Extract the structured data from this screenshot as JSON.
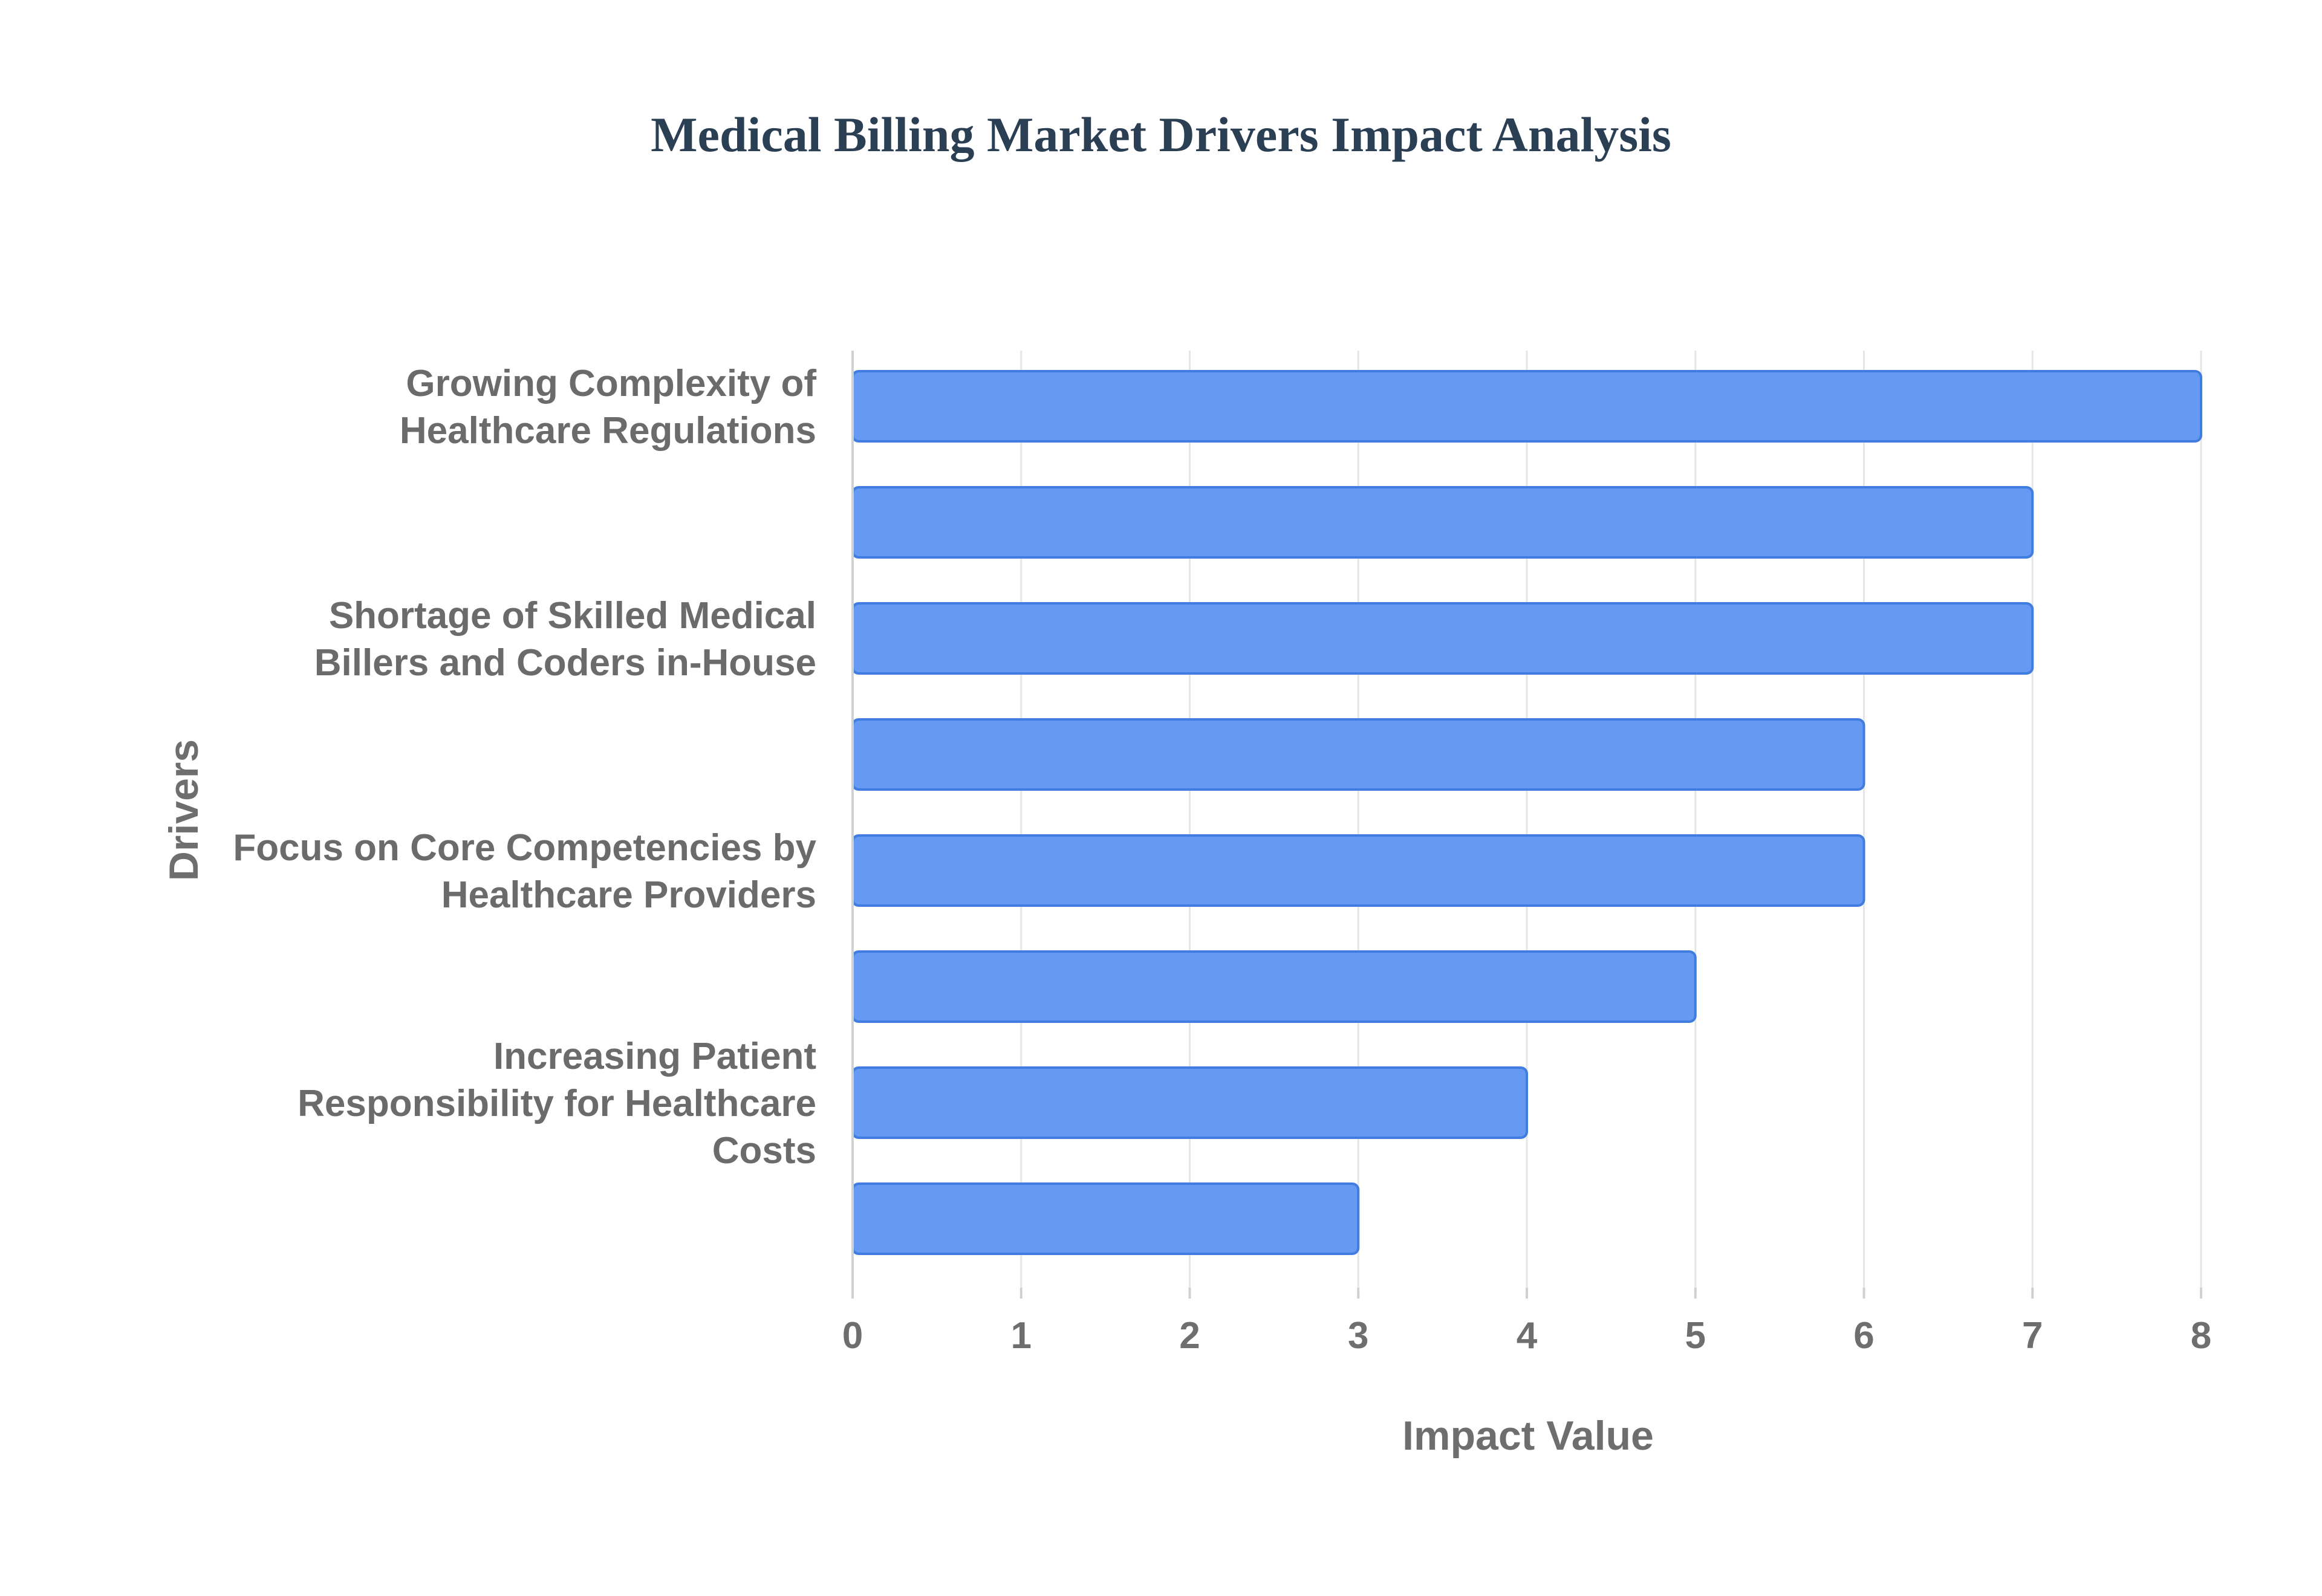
{
  "chart_data": {
    "type": "bar",
    "orientation": "horizontal",
    "title": "Medical Billing Market Drivers Impact Analysis",
    "xlabel": "Impact Value",
    "ylabel": "Drivers",
    "xlim": [
      0,
      8
    ],
    "xticks": [
      "0",
      "1",
      "2",
      "3",
      "4",
      "5",
      "6",
      "7",
      "8"
    ],
    "grid": true,
    "categories": [
      {
        "lines": [
          "Growing Complexity of",
          "Healthcare Regulations"
        ],
        "value": 8
      },
      {
        "lines": [],
        "value": 7
      },
      {
        "lines": [
          "Shortage of Skilled Medical",
          "Billers and Coders in-House"
        ],
        "value": 7
      },
      {
        "lines": [],
        "value": 6
      },
      {
        "lines": [
          "Focus on Core Competencies by",
          "Healthcare Providers"
        ],
        "value": 6
      },
      {
        "lines": [],
        "value": 5
      },
      {
        "lines": [
          "Increasing Patient",
          "Responsibility for Healthcare",
          "Costs"
        ],
        "value": 4
      },
      {
        "lines": [],
        "value": 3
      }
    ],
    "colors": {
      "bar_fill": "#6699f2",
      "bar_stroke": "#3f7de0",
      "title": "#2a3f54",
      "labels": "#6e6e6e"
    }
  }
}
